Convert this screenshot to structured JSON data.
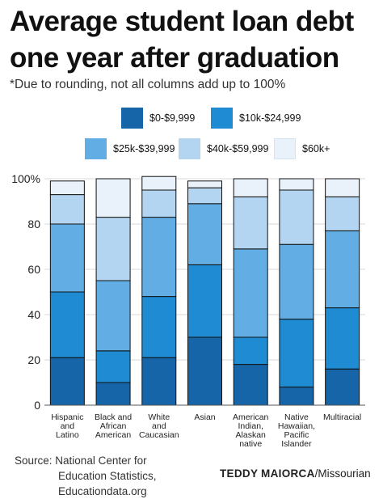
{
  "header": {
    "title": "Average student loan debt one year after graduation",
    "subtitle": "*Due to rounding, not all columns add up to 100%"
  },
  "colors": {
    "$0-$9,999": "#1565a8",
    "$10k-$24,999": "#1f8bd2",
    "$25k-$39,999": "#62aee4",
    "$40k-$59,999": "#b3d5f1",
    "$60k+": "#e9f2fb"
  },
  "chart_data": {
    "type": "bar",
    "stacked": true,
    "categories": [
      "Hispanic and Latino",
      "Black and African American",
      "White and Caucasian",
      "Asian",
      "American Indian, Alaskan native",
      "Native Hawaiian, Pacific Islander",
      "Multiracial"
    ],
    "category_lines": [
      [
        "Hispanic",
        "and",
        "Latino"
      ],
      [
        "Black and",
        "African",
        "American"
      ],
      [
        "White",
        "and",
        "Caucasian"
      ],
      [
        "Asian"
      ],
      [
        "American",
        "Indian,",
        "Alaskan",
        "native"
      ],
      [
        "Native",
        "Hawaiian,",
        "Pacific",
        "Islander"
      ],
      [
        "Multiracial"
      ]
    ],
    "series": [
      {
        "name": "$0-$9,999",
        "values": [
          21,
          10,
          21,
          30,
          18,
          8,
          16
        ]
      },
      {
        "name": "$10k-$24,999",
        "values": [
          29,
          14,
          27,
          32,
          12,
          30,
          27
        ]
      },
      {
        "name": "$25k-$39,999",
        "values": [
          30,
          31,
          35,
          27,
          39,
          33,
          34
        ]
      },
      {
        "name": "$40k-$59,999",
        "values": [
          13,
          28,
          12,
          7,
          23,
          24,
          15
        ]
      },
      {
        "name": "$60k+",
        "values": [
          6,
          17,
          6,
          3,
          8,
          5,
          8
        ]
      }
    ],
    "ylim": [
      0,
      100
    ],
    "yticks": [
      "0",
      "20",
      "40",
      "60",
      "80",
      "100%"
    ],
    "ytick_values": [
      0,
      20,
      40,
      60,
      80,
      100
    ],
    "grid": true,
    "legend_position": "top"
  },
  "footer": {
    "source_label": "Source:",
    "source_lines": [
      "National Center for",
      "Education Statistics,",
      "Educationdata.org"
    ],
    "credit_name": "TEDDY MAIORCA",
    "credit_org": "/Missourian"
  }
}
